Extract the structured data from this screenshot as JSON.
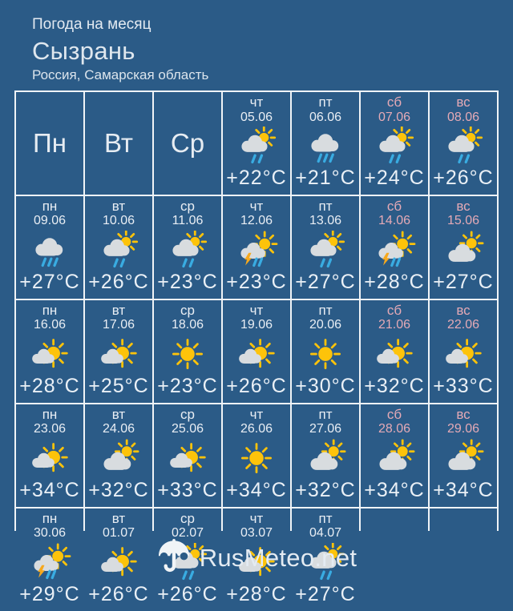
{
  "header": {
    "title": "Погода на месяц",
    "city": "Сызрань",
    "region": "Россия, Самарская область"
  },
  "calendar": {
    "weekday_headers": [
      "Пн",
      "Вт",
      "Ср"
    ],
    "cells": [
      {
        "type": "header",
        "label": "Пн"
      },
      {
        "type": "header",
        "label": "Вт"
      },
      {
        "type": "header",
        "label": "Ср"
      },
      {
        "type": "day",
        "day": "чт",
        "date": "05.06",
        "icon": "sun-rain",
        "temp": "+22°C",
        "weekend": false
      },
      {
        "type": "day",
        "day": "пт",
        "date": "06.06",
        "icon": "rain",
        "temp": "+21°C",
        "weekend": false
      },
      {
        "type": "day",
        "day": "сб",
        "date": "07.06",
        "icon": "sun-rain",
        "temp": "+24°C",
        "weekend": true
      },
      {
        "type": "day",
        "day": "вс",
        "date": "08.06",
        "icon": "sun-rain",
        "temp": "+26°C",
        "weekend": true
      },
      {
        "type": "day",
        "day": "пн",
        "date": "09.06",
        "icon": "rain",
        "temp": "+27°C",
        "weekend": false
      },
      {
        "type": "day",
        "day": "вт",
        "date": "10.06",
        "icon": "sun-rain",
        "temp": "+26°C",
        "weekend": false
      },
      {
        "type": "day",
        "day": "ср",
        "date": "11.06",
        "icon": "sun-rain",
        "temp": "+23°C",
        "weekend": false
      },
      {
        "type": "day",
        "day": "чт",
        "date": "12.06",
        "icon": "thunder-sun",
        "temp": "+23°C",
        "weekend": false
      },
      {
        "type": "day",
        "day": "пт",
        "date": "13.06",
        "icon": "sun-rain",
        "temp": "+27°C",
        "weekend": false
      },
      {
        "type": "day",
        "day": "сб",
        "date": "14.06",
        "icon": "thunder-sun",
        "temp": "+28°C",
        "weekend": true
      },
      {
        "type": "day",
        "day": "вс",
        "date": "15.06",
        "icon": "cloud-sun",
        "temp": "+27°C",
        "weekend": true
      },
      {
        "type": "day",
        "day": "пн",
        "date": "16.06",
        "icon": "sun-cloud",
        "temp": "+28°C",
        "weekend": false
      },
      {
        "type": "day",
        "day": "вт",
        "date": "17.06",
        "icon": "sun-cloud",
        "temp": "+25°C",
        "weekend": false
      },
      {
        "type": "day",
        "day": "ср",
        "date": "18.06",
        "icon": "sun",
        "temp": "+23°C",
        "weekend": false
      },
      {
        "type": "day",
        "day": "чт",
        "date": "19.06",
        "icon": "sun-cloud",
        "temp": "+26°C",
        "weekend": false
      },
      {
        "type": "day",
        "day": "пт",
        "date": "20.06",
        "icon": "sun",
        "temp": "+30°C",
        "weekend": false
      },
      {
        "type": "day",
        "day": "сб",
        "date": "21.06",
        "icon": "sun-cloud",
        "temp": "+32°C",
        "weekend": true
      },
      {
        "type": "day",
        "day": "вс",
        "date": "22.06",
        "icon": "sun-cloud",
        "temp": "+33°C",
        "weekend": true
      },
      {
        "type": "day",
        "day": "пн",
        "date": "23.06",
        "icon": "sun-cloud",
        "temp": "+34°C",
        "weekend": false
      },
      {
        "type": "day",
        "day": "вт",
        "date": "24.06",
        "icon": "cloud-sun",
        "temp": "+32°C",
        "weekend": false
      },
      {
        "type": "day",
        "day": "ср",
        "date": "25.06",
        "icon": "sun-cloud",
        "temp": "+33°C",
        "weekend": false
      },
      {
        "type": "day",
        "day": "чт",
        "date": "26.06",
        "icon": "sun",
        "temp": "+34°C",
        "weekend": false
      },
      {
        "type": "day",
        "day": "пт",
        "date": "27.06",
        "icon": "cloud-sun",
        "temp": "+32°C",
        "weekend": false
      },
      {
        "type": "day",
        "day": "сб",
        "date": "28.06",
        "icon": "cloud-sun",
        "temp": "+34°C",
        "weekend": true
      },
      {
        "type": "day",
        "day": "вс",
        "date": "29.06",
        "icon": "cloud-sun",
        "temp": "+34°C",
        "weekend": true
      },
      {
        "type": "day",
        "day": "пн",
        "date": "30.06",
        "icon": "thunder-sun",
        "temp": "+29°C",
        "weekend": false
      },
      {
        "type": "day",
        "day": "вт",
        "date": "01.07",
        "icon": "sun-cloud",
        "temp": "+26°C",
        "weekend": false
      },
      {
        "type": "day",
        "day": "ср",
        "date": "02.07",
        "icon": "sun-rain",
        "temp": "+26°C",
        "weekend": false
      },
      {
        "type": "day",
        "day": "чт",
        "date": "03.07",
        "icon": "sun-cloud",
        "temp": "+28°C",
        "weekend": false
      },
      {
        "type": "day",
        "day": "пт",
        "date": "04.07",
        "icon": "sun-rain",
        "temp": "+27°C",
        "weekend": false
      },
      {
        "type": "empty"
      },
      {
        "type": "empty"
      }
    ]
  },
  "footer": {
    "site": "RusMeteo.net",
    "icon": "umbrella-icon"
  },
  "colors": {
    "background": "#2b5b87",
    "grid_line": "#f0f4f7",
    "text": "#e9eef3",
    "weekend_text": "#e5aab6",
    "sun": "#fdc30a",
    "cloud": "#d8dcdf",
    "rain": "#39ace2",
    "lightning": "#f6a81c"
  }
}
